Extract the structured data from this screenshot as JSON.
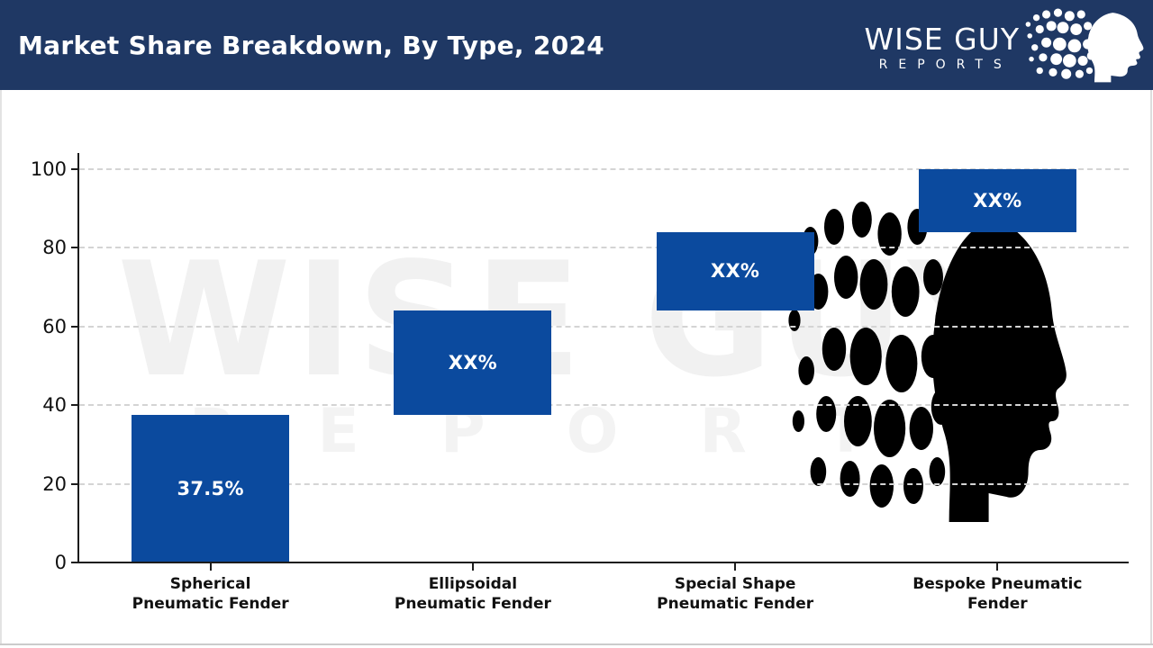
{
  "header": {
    "title": "Market Share Breakdown, By Type, 2024",
    "bg_color": "#1f3864",
    "logo": {
      "line1": "WISE GUY",
      "line2": "REPORTS"
    }
  },
  "watermark": {
    "line1": "WISE GUY",
    "line2": "REPORTS"
  },
  "chart_data": {
    "type": "bar",
    "subtype": "waterfall",
    "title": "Market Share Breakdown, By Type, 2024",
    "categories": [
      "Spherical\nPneumatic Fender",
      "Ellipsoidal\nPneumatic Fender",
      "Special Shape\nPneumatic Fender",
      "Bespoke Pneumatic\nFender"
    ],
    "segments": [
      {
        "category": "Spherical\nPneumatic Fender",
        "start": 0,
        "end": 37.5,
        "label": "37.5%"
      },
      {
        "category": "Ellipsoidal\nPneumatic Fender",
        "start": 37.5,
        "end": 64,
        "label": "XX%"
      },
      {
        "category": "Special Shape\nPneumatic Fender",
        "start": 64,
        "end": 84,
        "label": "XX%"
      },
      {
        "category": "Bespoke Pneumatic\nFender",
        "start": 84,
        "end": 100,
        "label": "XX%"
      }
    ],
    "xlabel": "",
    "ylabel": "",
    "ylim": [
      0,
      100
    ],
    "yticks": [
      0,
      20,
      40,
      60,
      80,
      100
    ],
    "grid": "horizontal-dashed",
    "legend": "none",
    "bar_color": "#0b4a9e",
    "bar_label_color": "#ffffff",
    "axis_color": "#1c1c1c"
  }
}
